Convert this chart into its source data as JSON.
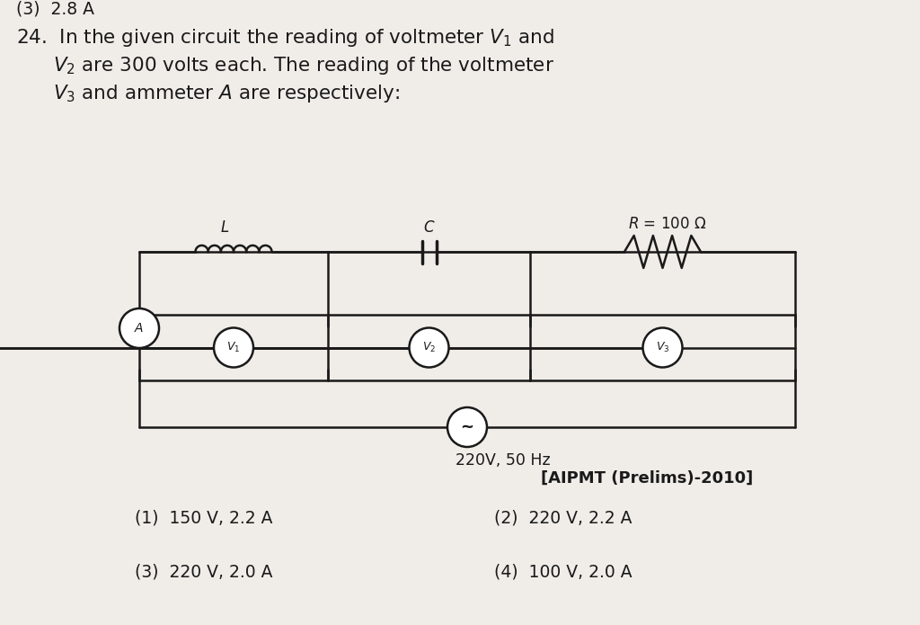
{
  "background_color": "#f0ede8",
  "title_text": "24.  In the given circuit the reading of voltmeter $V_1$ and\n      $V_2$ are 300 volts each. The reading of the voltmeter\n      $V_3$ and ammeter $A$ are respectively:",
  "title_fontsize": 15.5,
  "source_label": "220V, 50 Hz",
  "ref_label": "[AIPMT (Prelims)-2010]",
  "options": [
    "(1)  150 V, 2.2 A",
    "(2)  220 V, 2.2 A",
    "(3)  220 V, 2.0 A",
    "(4)  100 V, 2.0 A"
  ],
  "R_label": "$R$ = 100 Ω",
  "L_label": "$L$",
  "C_label": "$C$",
  "circuit_bg": "#ffffff",
  "text_color": "#1a1a1a"
}
